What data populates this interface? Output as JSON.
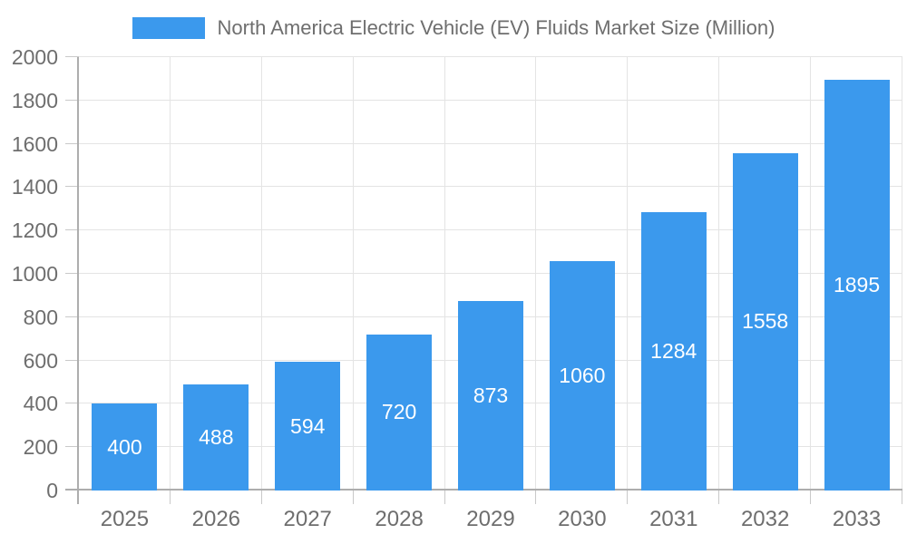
{
  "legend": {
    "label": "North America Electric Vehicle (EV) Fluids Market Size (Million)"
  },
  "chart_data": {
    "type": "bar",
    "title": "North America Electric Vehicle (EV) Fluids Market Size (Million)",
    "categories": [
      "2025",
      "2026",
      "2027",
      "2028",
      "2029",
      "2030",
      "2031",
      "2032",
      "2033"
    ],
    "values": [
      400,
      488,
      594,
      720,
      873,
      1060,
      1284,
      1558,
      1895
    ],
    "xlabel": "",
    "ylabel": "",
    "ylim": [
      0,
      2000
    ],
    "ytick_step": 200,
    "grid": true,
    "legend_position": "top",
    "bar_labels": "inside-center",
    "colors": {
      "bar": "#3B99ED",
      "bar_label_text": "#ffffff",
      "axis_text": "#6e6e6e",
      "axis_line": "#adadad",
      "gridline": "#e4e4e4",
      "tick": "#c9c9c9",
      "background": "#ffffff"
    }
  }
}
